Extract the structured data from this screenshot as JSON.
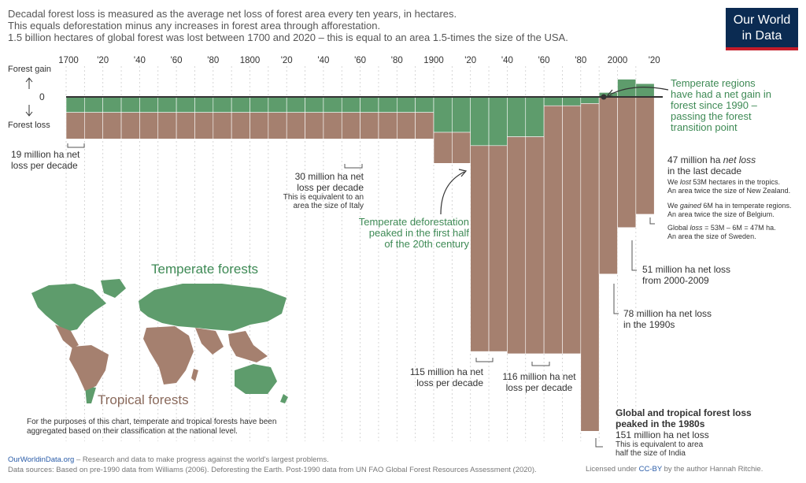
{
  "intro": {
    "line1": "Decadal forest loss is measured as the average net loss of forest area every ten years, in hectares.",
    "line2": "This equals deforestation minus any increases in forest area through afforestation.",
    "line3": "1.5 billion hectares of global forest was lost between 1700 and 2020 – this is equal to an area 1.5-times the size of the USA."
  },
  "logo": {
    "line1": "Our World",
    "line2": "in Data"
  },
  "axis": {
    "forest_gain": "Forest gain",
    "forest_loss": "Forest loss",
    "zero": "0"
  },
  "colors": {
    "temperate": "#5e9c6c",
    "tropical": "#a5806f",
    "axis": "#333333",
    "grid": "#cccccc",
    "green_text": "#3e8a55"
  },
  "chart_data": {
    "type": "bar",
    "title": "",
    "xlabel": "",
    "ylabel": "",
    "unit": "million hectares per decade",
    "x_tick_labels": [
      "1700",
      "'20",
      "'40",
      "'60",
      "'80",
      "1800",
      "'20",
      "'40",
      "'60",
      "'80",
      "1900",
      "'20",
      "'40",
      "'60",
      "'80",
      "2000",
      "'20"
    ],
    "periods": [
      "1700s",
      "1710s",
      "1720s",
      "1730s",
      "1740s",
      "1750s",
      "1760s",
      "1770s",
      "1780s",
      "1790s",
      "1800s",
      "1810s",
      "1820s",
      "1830s",
      "1840s",
      "1850s",
      "1860s",
      "1870s",
      "1880s",
      "1890s",
      "1900s",
      "1910s",
      "1920s",
      "1930s",
      "1940s",
      "1950s",
      "1960s",
      "1970s",
      "1980s",
      "1990s",
      "2000s",
      "2010s"
    ],
    "series": [
      {
        "name": "Temperate forests",
        "values": [
          -7,
          -7,
          -7,
          -7,
          -7,
          -7,
          -7,
          -7,
          -7,
          -7,
          -7,
          -7,
          -7,
          -7,
          -7,
          -7,
          -7,
          -7,
          -7,
          -7,
          -16,
          -16,
          -22,
          -22,
          -18,
          -18,
          -4,
          -4,
          -3,
          2,
          8,
          6
        ]
      },
      {
        "name": "Tropical forests",
        "values": [
          -12,
          -12,
          -12,
          -12,
          -12,
          -12,
          -12,
          -12,
          -12,
          -12,
          -12,
          -12,
          -12,
          -12,
          -12,
          -12,
          -12,
          -12,
          -12,
          -12,
          -14,
          -14,
          -93,
          -93,
          -98,
          -98,
          -112,
          -112,
          -148,
          -80,
          -59,
          -53
        ]
      }
    ],
    "ylim": [
      -151,
      20
    ]
  },
  "annotations": {
    "a1": {
      "l1": "19 million ha net",
      "l2": "loss per decade"
    },
    "a2": {
      "l1": "30 million ha net",
      "l2": "loss per decade",
      "l3": "This is equivalent to an",
      "l4": "area the size of Italy"
    },
    "a3": {
      "l1": "Temperate deforestation",
      "l2": "peaked in the first half",
      "l3": "of the 20th century"
    },
    "a4": {
      "l1": "115 million ha net",
      "l2": "loss per decade"
    },
    "a5": {
      "l1": "116 million ha net",
      "l2": "loss per decade"
    },
    "a6": {
      "l1": "Temperate regions",
      "l2": "have had a net gain in",
      "l3": "forest since 1990 –",
      "l4": "passing the forest",
      "l5": "transition point"
    },
    "a7": {
      "l1": "47 million ha",
      "l1b": "net loss",
      "l2": "in the last decade",
      "l3": "We",
      "l3b": "lost",
      "l3c": "53M hectares in the tropics.",
      "l4": "An area twice the size of New Zealand.",
      "l5": "We",
      "l5b": "gained",
      "l5c": "6M ha in temperate regions.",
      "l6": "An area twice the size of Belgium.",
      "l7": "Global",
      "l7b": "loss",
      "l7c": "= 53M – 6M = 47M ha.",
      "l8": "An area the size of Sweden."
    },
    "a8": {
      "l1": "51 million ha net loss",
      "l2": "from 2000-2009"
    },
    "a9": {
      "l1": "78 million ha net loss",
      "l2": "in the 1990s"
    },
    "a10": {
      "l1": "Global and tropical forest loss",
      "l2": "peaked in the 1980s",
      "l3": "151 million ha net loss",
      "l4": "This is equivalent to area",
      "l5": "half the size of India"
    }
  },
  "map": {
    "temperate_label": "Temperate forests",
    "tropical_label": "Tropical forests",
    "note1": "For the purposes of this chart, temperate and tropical forests have been",
    "note2": "aggregated based on their classification at the national level."
  },
  "footer": {
    "link": "OurWorldinData.org",
    "line1_rest": " – Research and data to make progress against the world's largest problems.",
    "line2": "Data sources: Based on pre-1990 data from Williams (2006). Deforesting the Earth. Post-1990 data from UN FAO Global Forest Resources Assessment (2020).",
    "license_pre": "Licensed under ",
    "license_link": "CC-BY",
    "license_post": " by the author Hannah Ritchie."
  }
}
